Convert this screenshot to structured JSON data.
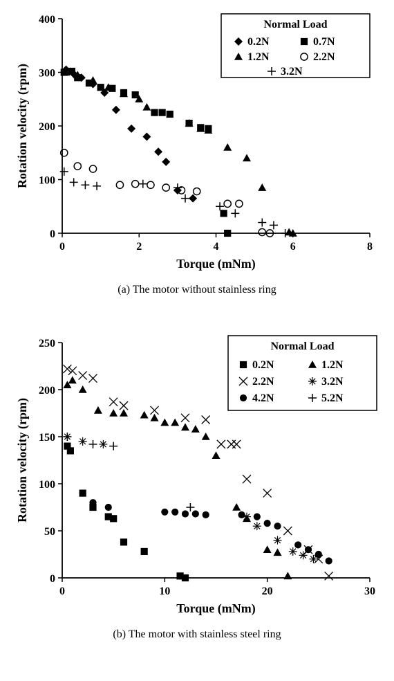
{
  "chart_a": {
    "type": "scatter",
    "caption": "(a) The motor without stainless ring",
    "xlabel": "Torque (mNm)",
    "ylabel": "Rotation velocity (rpm)",
    "label_fontsize": 18,
    "tick_fontsize": 16,
    "legend_title": "Normal Load",
    "legend_fontsize": 16,
    "xlim": [
      0,
      8
    ],
    "ylim": [
      0,
      400
    ],
    "xtick_step": 2,
    "ytick_step": 100,
    "axis_color": "#000000",
    "background_color": "#ffffff",
    "marker_size": 6,
    "series": [
      {
        "name": "0.2N",
        "marker": "diamond",
        "fill": "#000000",
        "data": [
          [
            0.1,
            305
          ],
          [
            0.3,
            297
          ],
          [
            0.5,
            290
          ],
          [
            0.8,
            278
          ],
          [
            1.1,
            262
          ],
          [
            1.4,
            230
          ],
          [
            1.8,
            195
          ],
          [
            2.2,
            180
          ],
          [
            2.5,
            152
          ],
          [
            2.7,
            133
          ],
          [
            3.0,
            80
          ],
          [
            3.4,
            65
          ]
        ]
      },
      {
        "name": "0.7N",
        "marker": "square",
        "fill": "#000000",
        "data": [
          [
            0.05,
            300
          ],
          [
            0.25,
            302
          ],
          [
            0.4,
            290
          ],
          [
            0.7,
            280
          ],
          [
            1.0,
            272
          ],
          [
            1.3,
            270
          ],
          [
            1.6,
            262
          ],
          [
            1.9,
            258
          ],
          [
            2.4,
            225
          ],
          [
            2.6,
            225
          ],
          [
            2.8,
            222
          ],
          [
            3.3,
            205
          ],
          [
            3.6,
            197
          ],
          [
            3.8,
            195
          ],
          [
            4.2,
            37
          ],
          [
            4.3,
            0
          ]
        ]
      },
      {
        "name": "1.2N",
        "marker": "triangle",
        "fill": "#000000",
        "data": [
          [
            0.1,
            300
          ],
          [
            0.4,
            295
          ],
          [
            0.8,
            285
          ],
          [
            1.2,
            272
          ],
          [
            1.6,
            260
          ],
          [
            2.0,
            250
          ],
          [
            2.2,
            235
          ],
          [
            3.3,
            205
          ],
          [
            3.6,
            195
          ],
          [
            3.8,
            192
          ],
          [
            4.3,
            160
          ],
          [
            4.8,
            140
          ],
          [
            5.2,
            85
          ],
          [
            5.9,
            2
          ],
          [
            6.0,
            0
          ]
        ]
      },
      {
        "name": "2.2N",
        "marker": "circle",
        "fill": "none",
        "stroke": "#000000",
        "data": [
          [
            0.05,
            150
          ],
          [
            0.4,
            125
          ],
          [
            0.8,
            120
          ],
          [
            1.5,
            90
          ],
          [
            1.9,
            92
          ],
          [
            2.3,
            90
          ],
          [
            2.7,
            85
          ],
          [
            3.1,
            80
          ],
          [
            3.5,
            78
          ],
          [
            4.3,
            55
          ],
          [
            4.6,
            55
          ],
          [
            5.2,
            2
          ],
          [
            5.4,
            0
          ]
        ]
      },
      {
        "name": "3.2N",
        "marker": "plus",
        "stroke": "#000000",
        "data": [
          [
            0.05,
            115
          ],
          [
            0.3,
            95
          ],
          [
            0.6,
            90
          ],
          [
            0.9,
            88
          ],
          [
            2.1,
            92
          ],
          [
            3.0,
            85
          ],
          [
            3.2,
            65
          ],
          [
            4.1,
            50
          ],
          [
            4.5,
            37
          ],
          [
            5.2,
            20
          ],
          [
            5.5,
            15
          ],
          [
            5.8,
            0
          ]
        ]
      }
    ]
  },
  "chart_b": {
    "type": "scatter",
    "caption": "(b) The motor with stainless steel ring",
    "xlabel": "Torque   (mNm)",
    "ylabel": "Rotation velocity (rpm)",
    "label_fontsize": 18,
    "tick_fontsize": 16,
    "legend_title": "Normal  Load",
    "legend_fontsize": 16,
    "xlim": [
      0,
      30
    ],
    "ylim": [
      0,
      250
    ],
    "xtick_step": 10,
    "ytick_step": 50,
    "axis_color": "#000000",
    "background_color": "#ffffff",
    "marker_size": 6,
    "series": [
      {
        "name": "0.2N",
        "marker": "square",
        "fill": "#000000",
        "data": [
          [
            0.5,
            140
          ],
          [
            0.8,
            135
          ],
          [
            2.0,
            90
          ],
          [
            3.0,
            75
          ],
          [
            4.5,
            65
          ],
          [
            5.0,
            63
          ],
          [
            6.0,
            38
          ],
          [
            8.0,
            28
          ],
          [
            11.5,
            2
          ],
          [
            12.0,
            0
          ]
        ]
      },
      {
        "name": "1.2N",
        "marker": "triangle",
        "fill": "#000000",
        "data": [
          [
            0.5,
            205
          ],
          [
            1.0,
            210
          ],
          [
            2.0,
            200
          ],
          [
            3.5,
            178
          ],
          [
            5.0,
            175
          ],
          [
            6.0,
            175
          ],
          [
            8.0,
            173
          ],
          [
            9.0,
            170
          ],
          [
            10.0,
            165
          ],
          [
            11.0,
            165
          ],
          [
            12.0,
            160
          ],
          [
            13.0,
            158
          ],
          [
            14.0,
            150
          ],
          [
            15.0,
            130
          ],
          [
            17.0,
            75
          ],
          [
            18.0,
            63
          ],
          [
            20.0,
            30
          ],
          [
            21.0,
            27
          ],
          [
            22.0,
            2
          ]
        ]
      },
      {
        "name": "2.2N",
        "marker": "x",
        "stroke": "#000000",
        "data": [
          [
            0.5,
            222
          ],
          [
            1.0,
            220
          ],
          [
            2.0,
            215
          ],
          [
            3.0,
            212
          ],
          [
            5.0,
            187
          ],
          [
            6.0,
            183
          ],
          [
            9.0,
            178
          ],
          [
            12.0,
            170
          ],
          [
            14.0,
            168
          ],
          [
            15.5,
            142
          ],
          [
            16.5,
            142
          ],
          [
            17.0,
            142
          ],
          [
            18.0,
            105
          ],
          [
            20.0,
            90
          ],
          [
            22.0,
            50
          ],
          [
            24.0,
            30
          ],
          [
            25.0,
            20
          ],
          [
            26.0,
            2
          ]
        ]
      },
      {
        "name": "3.2N",
        "marker": "asterisk",
        "stroke": "#000000",
        "data": [
          [
            0.5,
            150
          ],
          [
            2.0,
            145
          ],
          [
            4.0,
            142
          ],
          [
            18.0,
            65
          ],
          [
            19.0,
            55
          ],
          [
            21.0,
            40
          ],
          [
            22.5,
            28
          ],
          [
            23.5,
            24
          ],
          [
            24.5,
            20
          ]
        ]
      },
      {
        "name": "4.2N",
        "marker": "circle",
        "fill": "#000000",
        "data": [
          [
            3.0,
            80
          ],
          [
            4.5,
            75
          ],
          [
            10.0,
            70
          ],
          [
            11.0,
            70
          ],
          [
            12.0,
            68
          ],
          [
            13.0,
            68
          ],
          [
            14.0,
            67
          ],
          [
            17.5,
            67
          ],
          [
            19.0,
            65
          ],
          [
            20.0,
            58
          ],
          [
            21.0,
            55
          ],
          [
            23.0,
            35
          ],
          [
            24.0,
            30
          ],
          [
            25.0,
            25
          ],
          [
            26.0,
            18
          ]
        ]
      },
      {
        "name": "5.2N",
        "marker": "plus",
        "stroke": "#000000",
        "data": [
          [
            0.5,
            150
          ],
          [
            3.0,
            142
          ],
          [
            5.0,
            140
          ],
          [
            12.5,
            75
          ]
        ]
      }
    ]
  }
}
